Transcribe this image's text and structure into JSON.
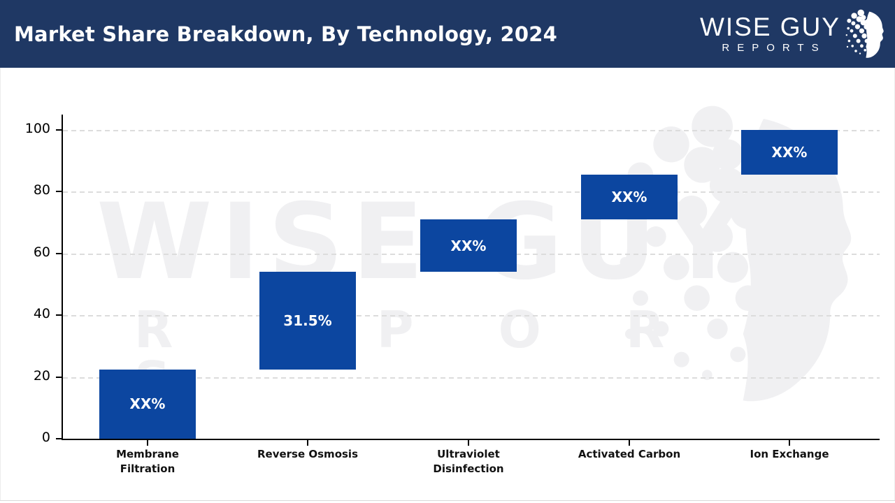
{
  "header": {
    "title": "Market Share Breakdown, By Technology, 2024",
    "logo_line1": "WISE GUY",
    "logo_line2": "REPORTS"
  },
  "watermark": {
    "line1": "WISE GUY",
    "line2": "R E P O R T S"
  },
  "colors": {
    "header_bg": "#1F3864",
    "bar": "#0C46A0",
    "bar_label": "#FFFFFF",
    "grid": "#DCDCDC",
    "axis": "#000000",
    "watermark": "#F0F0F2",
    "bottom_rule": "#D9D9D9"
  },
  "chart_data": {
    "type": "bar",
    "variant": "floating-cumulative-segments",
    "title": "Market Share Breakdown, By Technology, 2024",
    "categories": [
      "Membrane Filtration",
      "Reverse Osmosis",
      "Ultraviolet Disinfection",
      "Activated Carbon",
      "Ion Exchange"
    ],
    "category_label_lines": [
      [
        "Membrane",
        "Filtration"
      ],
      [
        "Reverse Osmosis"
      ],
      [
        "Ultraviolet",
        "Disinfection"
      ],
      [
        "Activated Carbon"
      ],
      [
        "Ion Exchange"
      ]
    ],
    "segments": [
      {
        "category": "Membrane Filtration",
        "from": 0,
        "to": 22.5,
        "value": 22.5,
        "label": "XX%"
      },
      {
        "category": "Reverse Osmosis",
        "from": 22.5,
        "to": 54,
        "value": 31.5,
        "label": "31.5%"
      },
      {
        "category": "Ultraviolet Disinfection",
        "from": 54,
        "to": 71,
        "value": 17,
        "label": "XX%"
      },
      {
        "category": "Activated Carbon",
        "from": 71,
        "to": 85.5,
        "value": 14.5,
        "label": "XX%"
      },
      {
        "category": "Ion Exchange",
        "from": 85.5,
        "to": 100,
        "value": 14.5,
        "label": "XX%"
      }
    ],
    "yticks": [
      0,
      20,
      40,
      60,
      80,
      100
    ],
    "ygrid": [
      20,
      40,
      60,
      80,
      100
    ],
    "ylim": [
      0,
      105
    ],
    "xlabel": "",
    "ylabel": "",
    "grid": "horizontal-dashed",
    "legend": "none"
  }
}
